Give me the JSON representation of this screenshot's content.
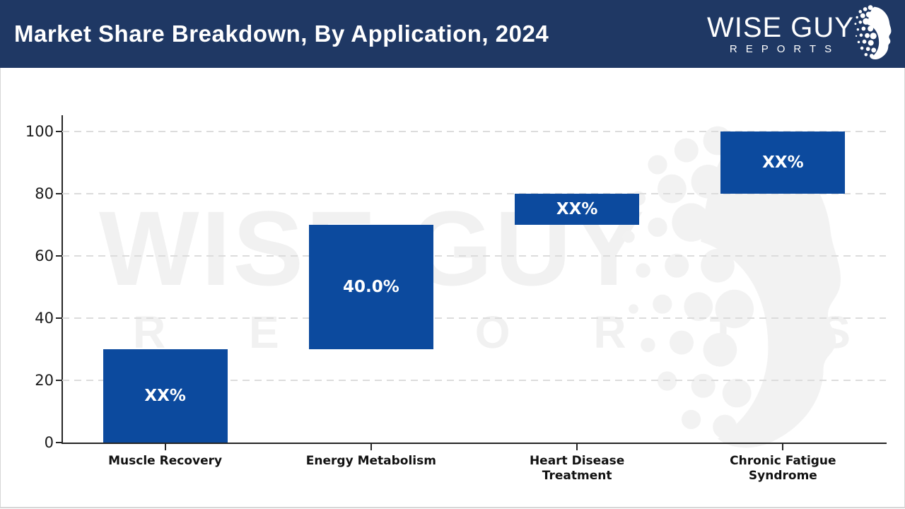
{
  "header": {
    "title": "Market Share Breakdown, By Application, 2024",
    "bg_color": "#1f3864",
    "logo": {
      "line1": "WISE GUY",
      "line2": "REPORTS"
    }
  },
  "watermark": {
    "line1": "WISE GUY",
    "line2": "R E P O R T S"
  },
  "chart_data": {
    "type": "bar",
    "subtype": "waterfall",
    "title": "Market Share Breakdown, By Application, 2024",
    "categories": [
      "Muscle Recovery",
      "Energy Metabolism",
      "Heart Disease Treatment",
      "Chronic Fatigue Syndrome"
    ],
    "segments": [
      {
        "start": 0,
        "end": 30,
        "label": "XX%"
      },
      {
        "start": 30,
        "end": 70,
        "label": "40.0%"
      },
      {
        "start": 70,
        "end": 80,
        "label": "XX%"
      },
      {
        "start": 80,
        "end": 100,
        "label": "XX%"
      }
    ],
    "yticks": [
      0,
      20,
      40,
      60,
      80,
      100
    ],
    "ylim": [
      0,
      100
    ],
    "xlabel": "",
    "ylabel": "",
    "grid": "horizontal-dashed",
    "legend": "none",
    "bar_color": "#0c4a9e",
    "grid_color": "#dcdcdc",
    "axis_color": "#262626"
  }
}
